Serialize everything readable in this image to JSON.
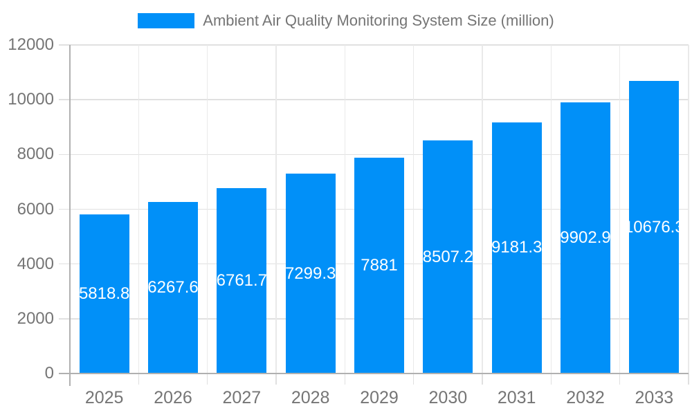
{
  "chart_data": {
    "type": "bar",
    "title": "Ambient Air Quality Monitoring System Size (million)",
    "legend_position": "top",
    "categories": [
      "2025",
      "2026",
      "2027",
      "2028",
      "2029",
      "2030",
      "2031",
      "2032",
      "2033"
    ],
    "series": [
      {
        "name": "Ambient Air Quality Monitoring System Size (million)",
        "values": [
          5818.8,
          6267.6,
          6761.7,
          7299.3,
          7881,
          8507.2,
          9181.3,
          9902.9,
          10676.3
        ],
        "labels": [
          "5818.8",
          "6267.6",
          "6761.7",
          "7299.3",
          "7881",
          "8507.2",
          "9181.3",
          "9902.9",
          "10676.3"
        ]
      }
    ],
    "xlabel": "",
    "ylabel": "",
    "ylim": [
      0,
      12000
    ],
    "yticks": [
      "0",
      "2000",
      "4000",
      "6000",
      "8000",
      "10000",
      "12000"
    ],
    "grid": true,
    "colors": {
      "bar": "#0190F8",
      "title_text": "#757575",
      "axis_text": "#757575",
      "axis_line": "#b0b0b0",
      "gridline": "#e0e0e0",
      "vgridline": "#e9e9e9",
      "bar_label_text": "#ffffff",
      "background": "#ffffff"
    }
  }
}
